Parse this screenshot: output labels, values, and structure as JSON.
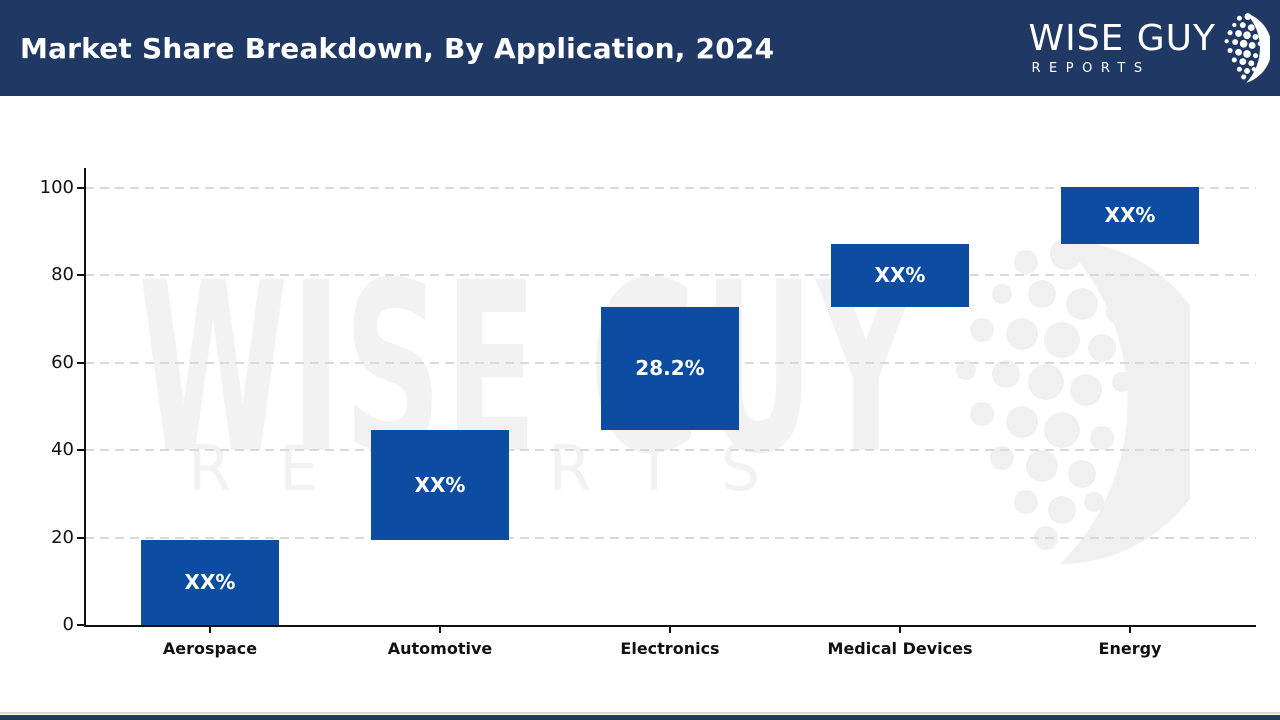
{
  "header": {
    "title": "Market Share Breakdown, By Application, 2024",
    "bg_color": "#1F3864",
    "logo": {
      "line1": "WISE GUY",
      "line2": "REPORTS"
    }
  },
  "watermark": {
    "line1": "WISE GUY",
    "line2": "REPORTS"
  },
  "chart_data": {
    "type": "bar",
    "subtype": "floating-stacked-waterfall",
    "title": "Market Share Breakdown, By Application, 2024",
    "categories": [
      "Aerospace",
      "Automotive",
      "Electronics",
      "Medical Devices",
      "Energy"
    ],
    "series": [
      {
        "name": "Market Share",
        "ranges": [
          [
            0,
            19.5
          ],
          [
            19.5,
            44.6
          ],
          [
            44.6,
            72.8
          ],
          [
            72.8,
            87.2
          ],
          [
            87.2,
            100.2
          ]
        ],
        "values": [
          19.5,
          25.1,
          28.2,
          14.4,
          13.0
        ],
        "labels": [
          "XX%",
          "XX%",
          "28.2%",
          "XX%",
          "XX%"
        ]
      }
    ],
    "xlabel": "",
    "ylabel": "",
    "yticks": [
      0,
      20,
      40,
      60,
      80,
      100
    ],
    "ylim": [
      0,
      105
    ],
    "grid": "horizontal-dashed",
    "legend": false,
    "bar_color": "#0C4DA2",
    "bar_label_color": "#ffffff",
    "grid_color": "#d9d9d9",
    "axis_color": "#111111"
  }
}
